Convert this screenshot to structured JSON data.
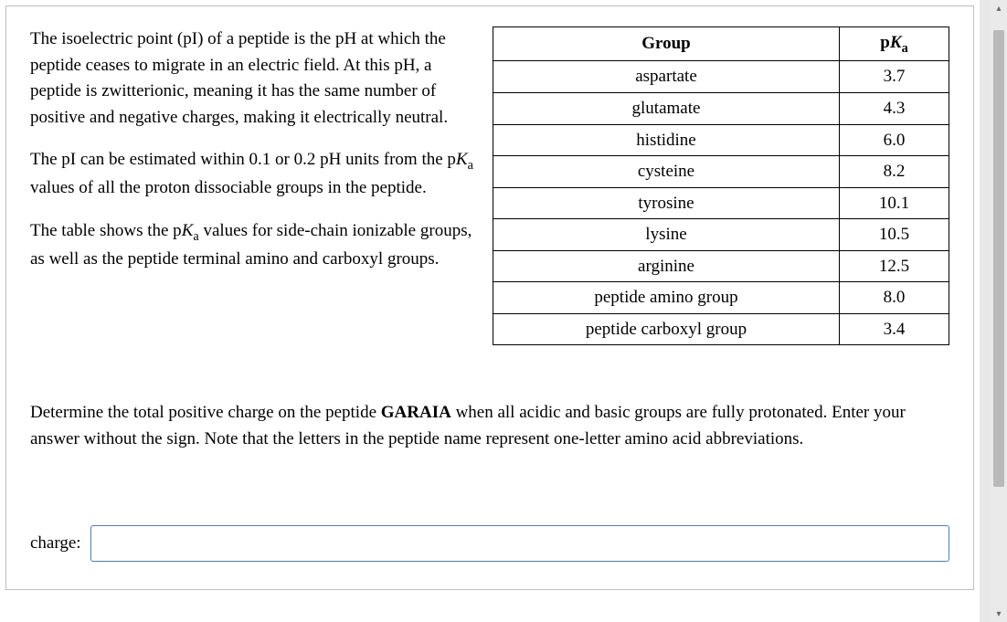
{
  "paragraphs": {
    "p1_parts": [
      {
        "t": "The isoelectric point (pI) of a peptide is the pH at which the peptide ceases to migrate in an electric field. At this pH, a peptide is zwitterionic, meaning it has the same number of positive and negative charges, making it electrically neutral."
      }
    ],
    "p2_parts": [
      {
        "t": "The pI can be estimated within 0.1 or 0.2 pH units from the p"
      },
      {
        "t": "K",
        "ital": true
      },
      {
        "t": "a",
        "sub": true
      },
      {
        "t": " values of all the proton dissociable groups in the peptide."
      }
    ],
    "p3_parts": [
      {
        "t": "The table shows the p"
      },
      {
        "t": "K",
        "ital": true
      },
      {
        "t": "a",
        "sub": true
      },
      {
        "t": " values for side-chain ionizable groups, as well as the peptide terminal amino and carboxyl groups."
      }
    ]
  },
  "table": {
    "headers": {
      "group": "Group",
      "pka_parts": [
        {
          "t": "p"
        },
        {
          "t": "K",
          "ital": true
        },
        {
          "t": "a",
          "sub": true
        }
      ]
    },
    "rows": [
      {
        "group": "aspartate",
        "value": "3.7"
      },
      {
        "group": "glutamate",
        "value": "4.3"
      },
      {
        "group": "histidine",
        "value": "6.0"
      },
      {
        "group": "cysteine",
        "value": "8.2"
      },
      {
        "group": "tyrosine",
        "value": "10.1"
      },
      {
        "group": "lysine",
        "value": "10.5"
      },
      {
        "group": "arginine",
        "value": "12.5"
      },
      {
        "group": "peptide amino group",
        "value": "8.0"
      },
      {
        "group": "peptide carboxyl group",
        "value": "3.4"
      }
    ]
  },
  "question_parts": [
    {
      "t": "Determine the total positive charge on the peptide "
    },
    {
      "t": "GARAIA",
      "bold": true
    },
    {
      "t": " when all acidic and basic groups are fully protonated. Enter your answer without the sign. Note that the letters in the peptide name represent one-letter amino acid abbreviations."
    }
  ],
  "answer": {
    "label": "charge:",
    "value": "",
    "placeholder": ""
  },
  "scrollbar": {
    "track_bg": "#eaeaea",
    "thumb_bg": "#b9b9b9",
    "thumb_top_pct": 2,
    "thumb_height_pct": 78
  }
}
